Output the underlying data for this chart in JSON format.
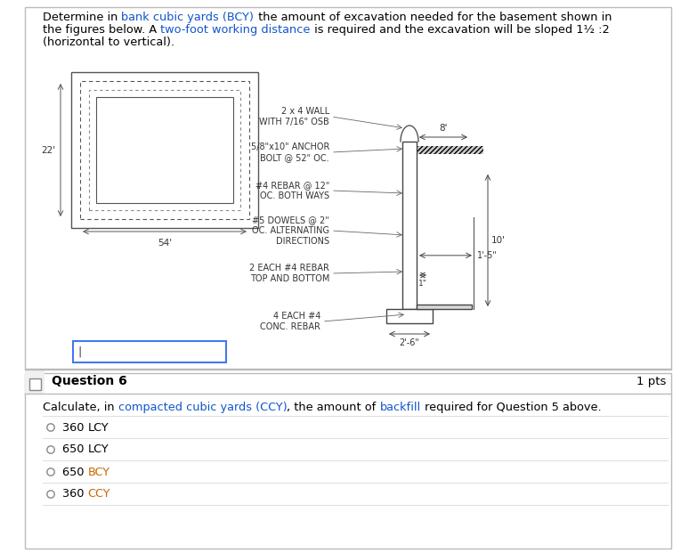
{
  "bg_color": "#ffffff",
  "text_color_blue": "#1155CC",
  "text_color_black": "#000000",
  "text_color_orange": "#cc6600",
  "line1_parts": [
    [
      "Determine in ",
      false
    ],
    [
      "bank cubic yards (BCY)",
      true
    ],
    [
      " the amount of excavation needed for the basement shown in",
      false
    ]
  ],
  "line2_parts": [
    [
      "the figures below. A ",
      false
    ],
    [
      "two-foot working distance",
      true
    ],
    [
      " is required and the excavation will be sloped 1½ :2",
      false
    ]
  ],
  "line3_parts": [
    [
      "(horizontal to vertical).",
      false
    ]
  ],
  "q6_header": "Question 6",
  "q6_pts": "1 pts",
  "q6_body_parts": [
    [
      "Calculate, in ",
      false
    ],
    [
      "compacted cubic yards (CCY)",
      true
    ],
    [
      ", the amount of ",
      false
    ],
    [
      "backfill",
      true
    ],
    [
      " required for Question 5 above.",
      false
    ]
  ],
  "options": [
    {
      "text": "360 ",
      "color": "black",
      "suffix": "LCY",
      "suffix_color": "black"
    },
    {
      "text": "650 ",
      "color": "black",
      "suffix": "LCY",
      "suffix_color": "black"
    },
    {
      "text": "650 ",
      "color": "black",
      "suffix": "BCY",
      "suffix_color": "orange"
    },
    {
      "text": "360 ",
      "color": "black",
      "suffix": "CCY",
      "suffix_color": "orange"
    }
  ],
  "plan_label_22": "22'",
  "plan_label_54": "54'",
  "wall_label": "2 x 4 WALL\nWITH 7/16\" OSB",
  "anchor_label": "5/8\"x10\" ANCHOR\nBOLT @ 52\" OC.",
  "rebar1_label": "#4 REBAR @ 12\"\nOC. BOTH WAYS",
  "dowels_label": "#5 DOWELS @ 2\"\nOC. ALTERNATING\nDIRECTIONS",
  "rebar2_label": "2 EACH #4 REBAR\nTOP AND BOTTOM",
  "rebar3_label": "4 EACH #4\nCONC. REBAR",
  "dim_10": "10'",
  "dim_8": "8'",
  "dim_1ft": "1\"",
  "dim_1_5ft": "1'-5\"",
  "dim_2_6ft": "2'-6\""
}
